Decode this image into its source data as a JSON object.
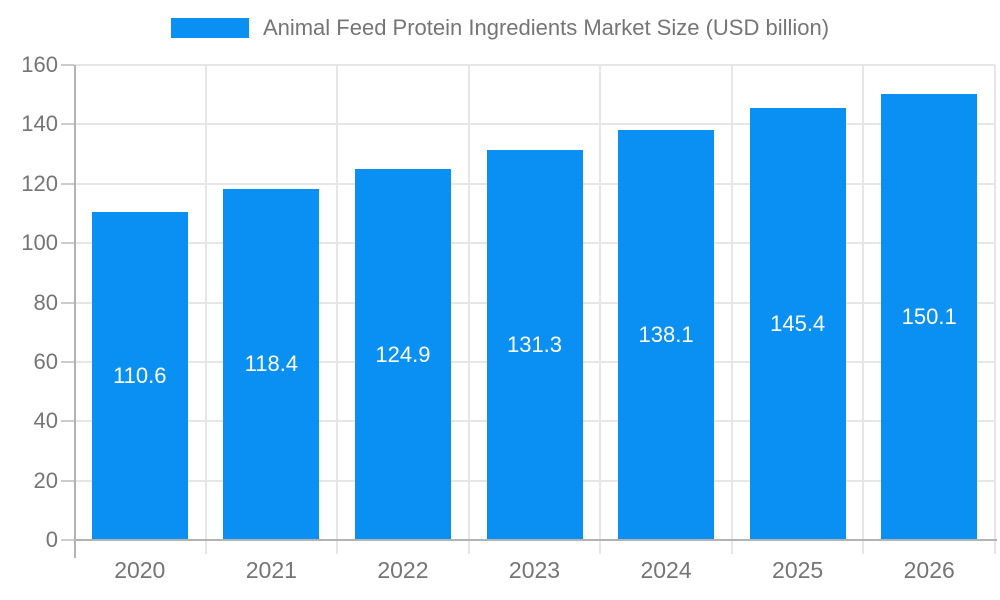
{
  "legend": {
    "title": "Animal Feed Protein Ingredients Market Size (USD billion)"
  },
  "chart_data": {
    "type": "bar",
    "title": "Animal Feed Protein Ingredients Market Size (USD billion)",
    "categories": [
      "2020",
      "2021",
      "2022",
      "2023",
      "2024",
      "2025",
      "2026"
    ],
    "values": [
      110.6,
      118.4,
      124.9,
      131.3,
      138.1,
      145.4,
      150.1
    ],
    "value_labels": [
      "110.6",
      "118.4",
      "124.9",
      "131.3",
      "138.1",
      "145.4",
      "150.1"
    ],
    "xlabel": "",
    "ylabel": "",
    "ylim": [
      0,
      160
    ],
    "yticks": [
      0,
      20,
      40,
      60,
      80,
      100,
      120,
      140,
      160
    ],
    "grid": true,
    "legend_position": "top",
    "value_labels_inside": true,
    "bar_color": "#0a90f2",
    "value_label_color": "#ffffff",
    "grid_color": "#e6e6e6",
    "axis_color": "#b3b3b3",
    "tick_label_color": "#757575"
  }
}
